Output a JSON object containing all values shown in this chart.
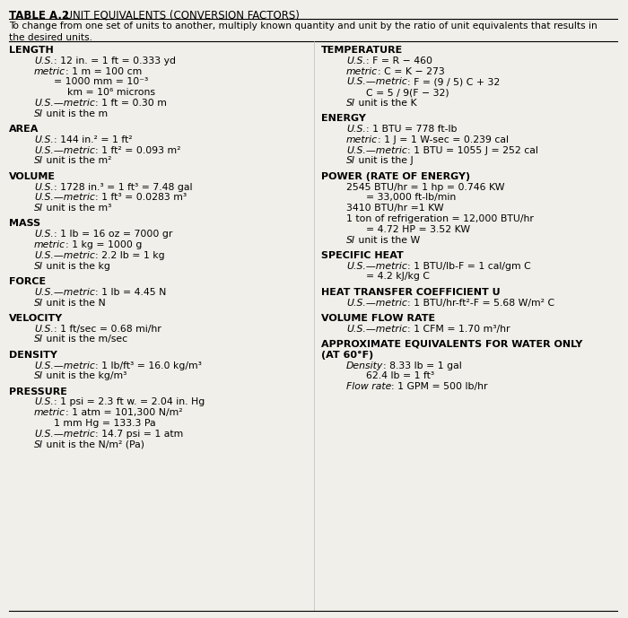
{
  "bg_color": "#f0efea",
  "title_bold": "TABLE A.2",
  "title_rest": "  UNIT EQUIVALENTS (CONVERSION FACTORS)",
  "subtitle_line1": "To change from one set of units to another, multiply known quantity and unit by the ratio of unit equivalents that results in",
  "subtitle_line2": "the desired units.",
  "left_sections": [
    {
      "header": "LENGTH",
      "lines": [
        {
          "type": "ip",
          "i": "U.S.",
          "n": ": 12 in. = 1 ft = 0.333 yd"
        },
        {
          "type": "ip",
          "i": "metric",
          "n": ": 1 m = 100 cm"
        },
        {
          "type": "i2",
          "text": "= 1000 mm = 10⁻³"
        },
        {
          "type": "i3",
          "text": "km = 10⁶ microns"
        },
        {
          "type": "ip",
          "i": "U.S.—metric",
          "n": ": 1 ft = 0.30 m"
        },
        {
          "type": "ip",
          "i": "SI",
          "n": " unit is the m"
        }
      ]
    },
    {
      "header": "AREA",
      "lines": [
        {
          "type": "ip",
          "i": "U.S.",
          "n": ": 144 in.² = 1 ft²"
        },
        {
          "type": "ip",
          "i": "U.S.—metric",
          "n": ": 1 ft² = 0.093 m²"
        },
        {
          "type": "ip",
          "i": "SI",
          "n": " unit is the m²"
        }
      ]
    },
    {
      "header": "VOLUME",
      "lines": [
        {
          "type": "ip",
          "i": "U.S.",
          "n": ": 1728 in.³ = 1 ft³ = 7.48 gal"
        },
        {
          "type": "ip",
          "i": "U.S.—metric",
          "n": ": 1 ft³ = 0.0283 m³"
        },
        {
          "type": "ip",
          "i": "SI",
          "n": " unit is the m³"
        }
      ]
    },
    {
      "header": "MASS",
      "lines": [
        {
          "type": "ip",
          "i": "U.S.",
          "n": ": 1 lb = 16 oz = 7000 gr"
        },
        {
          "type": "ip",
          "i": "metric",
          "n": ": 1 kg = 1000 g"
        },
        {
          "type": "ip",
          "i": "U.S.—metric",
          "n": ": 2.2 lb = 1 kg"
        },
        {
          "type": "ip",
          "i": "SI",
          "n": " unit is the kg"
        }
      ]
    },
    {
      "header": "FORCE",
      "lines": [
        {
          "type": "ip",
          "i": "U.S.—metric",
          "n": ": 1 lb = 4.45 N"
        },
        {
          "type": "ip",
          "i": "SI",
          "n": " unit is the N"
        }
      ]
    },
    {
      "header": "VELOCITY",
      "lines": [
        {
          "type": "ip",
          "i": "U.S.",
          "n": ": 1 ft/sec = 0.68 mi/hr"
        },
        {
          "type": "ip",
          "i": "SI",
          "n": " unit is the m/sec"
        }
      ]
    },
    {
      "header": "DENSITY",
      "lines": [
        {
          "type": "ip",
          "i": "U.S.—metric",
          "n": ": 1 lb/ft³ = 16.0 kg/m³"
        },
        {
          "type": "ip",
          "i": "SI",
          "n": " unit is the kg/m³"
        }
      ]
    },
    {
      "header": "PRESSURE",
      "lines": [
        {
          "type": "ip",
          "i": "U.S.",
          "n": ": 1 psi = 2.3 ft w. = 2.04 in. Hg"
        },
        {
          "type": "ip",
          "i": "metric",
          "n": ": 1 atm = 101,300 N/m²"
        },
        {
          "type": "i2",
          "text": "1 mm Hg = 133.3 Pa"
        },
        {
          "type": "ip",
          "i": "U.S.—metric",
          "n": ": 14.7 psi = 1 atm"
        },
        {
          "type": "ip",
          "i": "SI",
          "n": " unit is the N/m² (Pa)"
        }
      ]
    }
  ],
  "right_sections": [
    {
      "header": "TEMPERATURE",
      "lines": [
        {
          "type": "ip",
          "i": "U.S.",
          "n": ": F = R − 460"
        },
        {
          "type": "ip",
          "i": "metric",
          "n": ": C = K − 273"
        },
        {
          "type": "ip",
          "i": "U.S.—metric",
          "n": ": F = (9 / 5) C + 32"
        },
        {
          "type": "i2",
          "text": "C = 5 / 9(F − 32)"
        },
        {
          "type": "ip",
          "i": "SI",
          "n": " unit is the K"
        }
      ]
    },
    {
      "header": "ENERGY",
      "lines": [
        {
          "type": "ip",
          "i": "U.S.",
          "n": ": 1 BTU = 778 ft-lb"
        },
        {
          "type": "ip",
          "i": "metric",
          "n": ": 1 J = 1 W-sec = 0.239 cal"
        },
        {
          "type": "ip",
          "i": "U.S.—metric",
          "n": ": 1 BTU = 1055 J = 252 cal"
        },
        {
          "type": "ip",
          "i": "SI",
          "n": " unit is the J"
        }
      ]
    },
    {
      "header": "POWER (RATE OF ENERGY)",
      "lines": [
        {
          "type": "i1",
          "text": "2545 BTU/hr = 1 hp = 0.746 KW"
        },
        {
          "type": "i2",
          "text": "= 33,000 ft-lb/min"
        },
        {
          "type": "i1",
          "text": "3410 BTU/hr =1 KW"
        },
        {
          "type": "i1",
          "text": "1 ton of refrigeration = 12,000 BTU/hr"
        },
        {
          "type": "i2",
          "text": "= 4.72 HP = 3.52 KW"
        },
        {
          "type": "ip",
          "i": "SI",
          "n": " unit is the W"
        }
      ]
    },
    {
      "header": "SPECIFIC HEAT",
      "lines": [
        {
          "type": "ip",
          "i": "U.S.—metric",
          "n": ": 1 BTU/lb-F = 1 cal/gm C"
        },
        {
          "type": "i2",
          "text": "= 4.2 kJ/kg C"
        }
      ]
    },
    {
      "header": "HEAT TRANSFER COEFFICIENT U",
      "lines": [
        {
          "type": "ip",
          "i": "U.S.—metric",
          "n": ": 1 BTU/hr-ft²-F = 5.68 W/m² C"
        }
      ]
    },
    {
      "header": "VOLUME FLOW RATE",
      "lines": [
        {
          "type": "ip",
          "i": "U.S.—metric",
          "n": ": 1 CFM = 1.70 m³/hr"
        }
      ]
    },
    {
      "header": "APPROXIMATE EQUIVALENTS FOR WATER ONLY",
      "header2": "(AT 60°F)",
      "lines": [
        {
          "type": "ip",
          "i": "Density",
          "n": ": 8.33 lb = 1 gal"
        },
        {
          "type": "i2",
          "text": "62.4 lb = 1 ft³"
        },
        {
          "type": "ip",
          "i": "Flow rate",
          "n": ": 1 GPM = 500 lb/hr"
        }
      ]
    }
  ]
}
